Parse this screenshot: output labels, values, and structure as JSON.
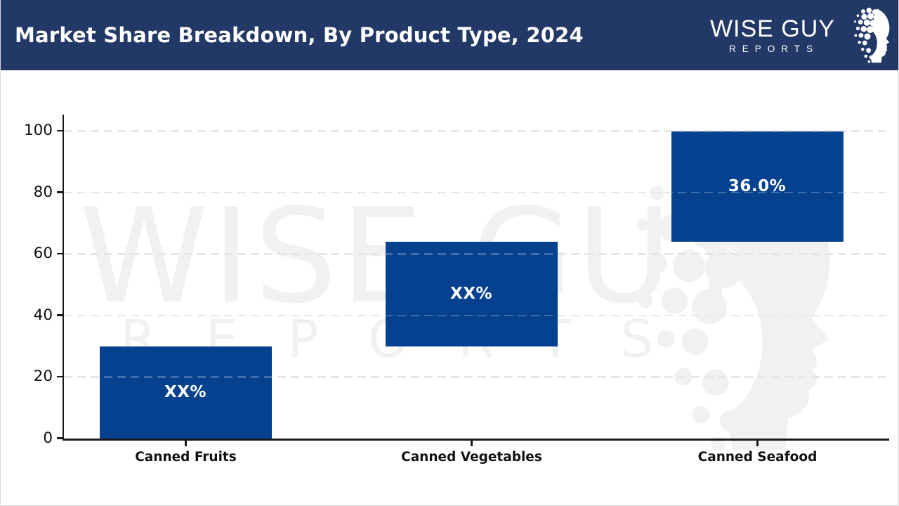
{
  "header": {
    "title": "Market Share Breakdown, By Product Type, 2024",
    "logo": {
      "name_line": "WISE GUY",
      "sub_line": "REPORTS"
    }
  },
  "watermark": {
    "line1": "WISE GUY",
    "line2": "REPORTS"
  },
  "colors": {
    "header_bg": "#223866",
    "header_text": "#ffffff",
    "bar": "#05418f",
    "bar_label": "#ffffff",
    "axis": "#1a1a1a",
    "tick_label": "#111111",
    "grid": "#e0e0e0",
    "grid_over_bar": "rgba(255,255,255,0.24)",
    "watermark": "#f1f1f1",
    "page_border": "#d8d8d8"
  },
  "chart_data": {
    "type": "bar",
    "subtype": "floating-segment (waterfall-style market share)",
    "title": "Market Share Breakdown, By Product Type, 2024",
    "categories": [
      "Canned Fruits",
      "Canned Vegetables",
      "Canned Seafood"
    ],
    "bars": [
      {
        "category": "Canned Fruits",
        "start": 0,
        "end": 30,
        "value": 30,
        "label": "XX%"
      },
      {
        "category": "Canned Vegetables",
        "start": 30,
        "end": 64,
        "value": 34,
        "label": "XX%"
      },
      {
        "category": "Canned Seafood",
        "start": 64,
        "end": 100,
        "value": 36,
        "label": "36.0%"
      }
    ],
    "xlabel": "",
    "ylabel": "",
    "yticks": [
      0,
      20,
      40,
      60,
      80,
      100
    ],
    "ylim": [
      0,
      105.3
    ],
    "grid": "horizontal dashed",
    "legend": "none"
  }
}
